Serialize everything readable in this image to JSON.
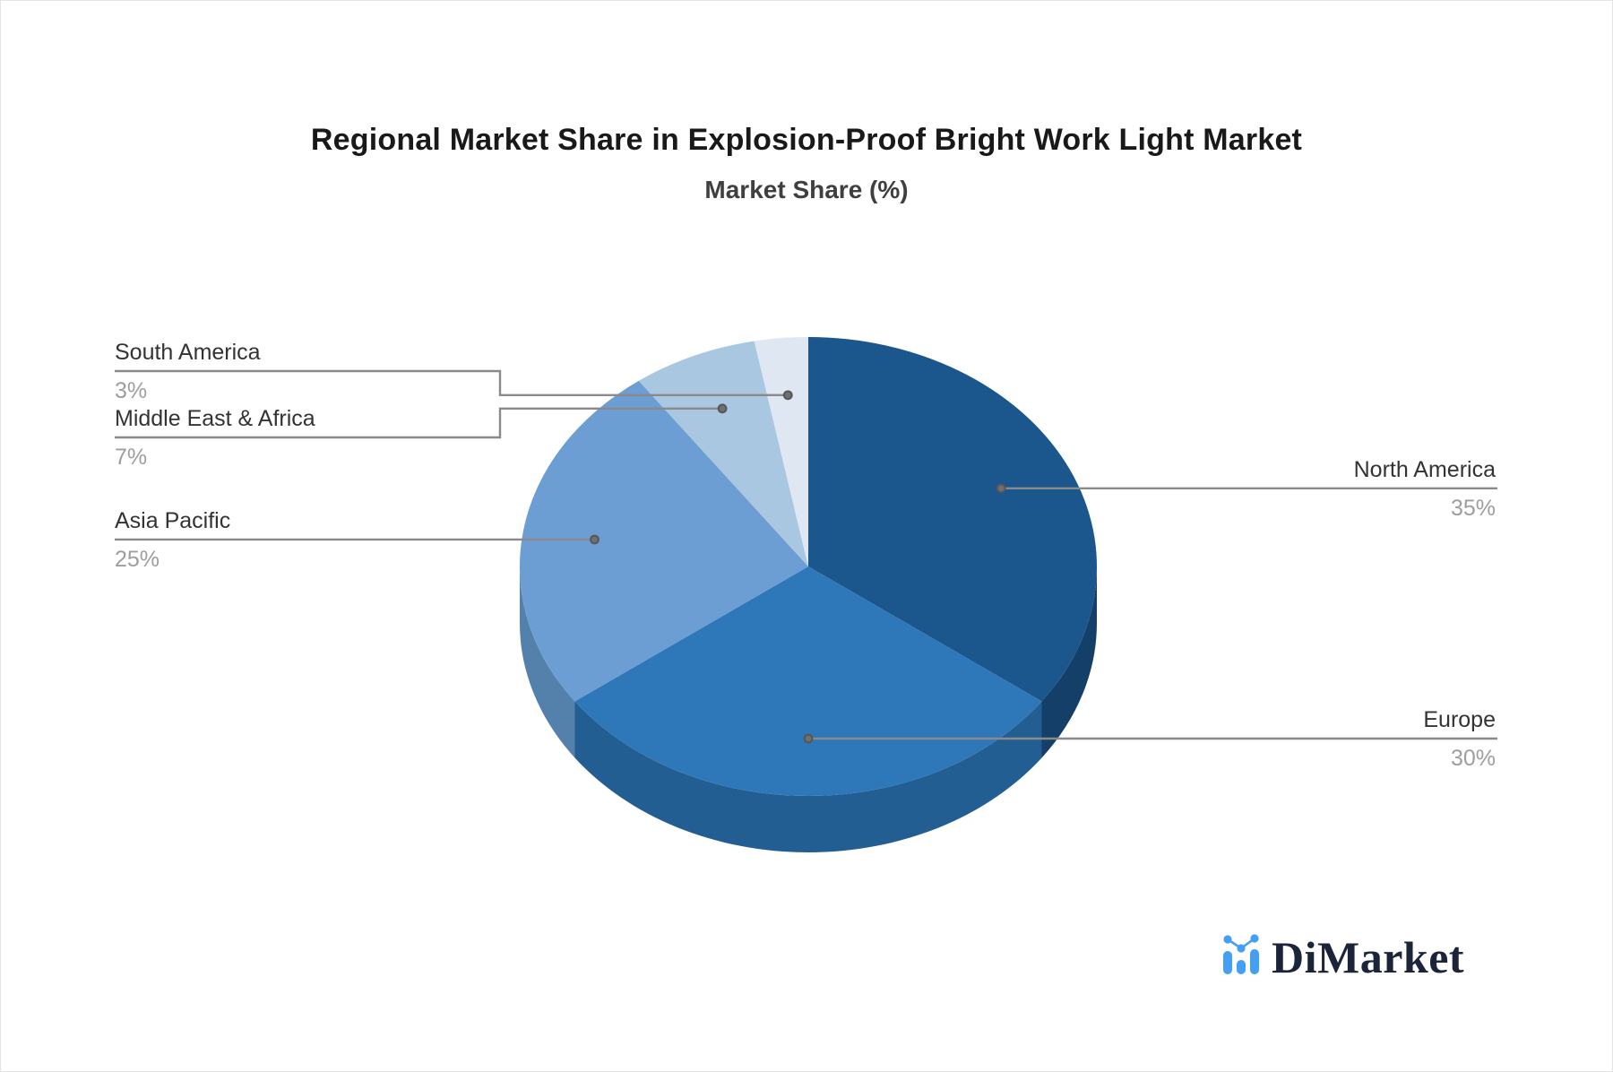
{
  "title": "Regional Market Share in Explosion-Proof Bright Work Light Market",
  "subtitle": "Market Share (%)",
  "brand": {
    "name": "DiMarket",
    "icon": "bar-chart-logo-icon",
    "text_color": "#1b2438",
    "accent_color": "#44a0f5"
  },
  "chart_data": {
    "type": "pie",
    "style": "3d",
    "title": "Regional Market Share in Explosion-Proof Bright Work Light Market",
    "subtitle": "Market Share (%)",
    "unit": "%",
    "start_angle": "12-o-clock",
    "direction": "clockwise",
    "legend_position": "outside-callouts",
    "leader_line_color": "#8a8a8a",
    "label_color": "#333333",
    "pct_label_color": "#9e9e9e",
    "slices": [
      {
        "label": "North America",
        "value": 35,
        "pct_label": "35%",
        "color": "#1B568C",
        "side_color": "#143F68",
        "callout_side": "right"
      },
      {
        "label": "Europe",
        "value": 30,
        "pct_label": "30%",
        "color": "#2E78BA",
        "side_color": "#235E93",
        "callout_side": "right"
      },
      {
        "label": "Asia Pacific",
        "value": 25,
        "pct_label": "25%",
        "color": "#6C9ED3",
        "side_color": "#5480AC",
        "callout_side": "left"
      },
      {
        "label": "Middle East & Africa",
        "value": 7,
        "pct_label": "7%",
        "color": "#AAC7E2",
        "side_color": "#8EAECB",
        "callout_side": "left"
      },
      {
        "label": "South America",
        "value": 3,
        "pct_label": "3%",
        "color": "#DEE7F2",
        "side_color": "#C2D1E2",
        "callout_side": "left"
      }
    ]
  }
}
